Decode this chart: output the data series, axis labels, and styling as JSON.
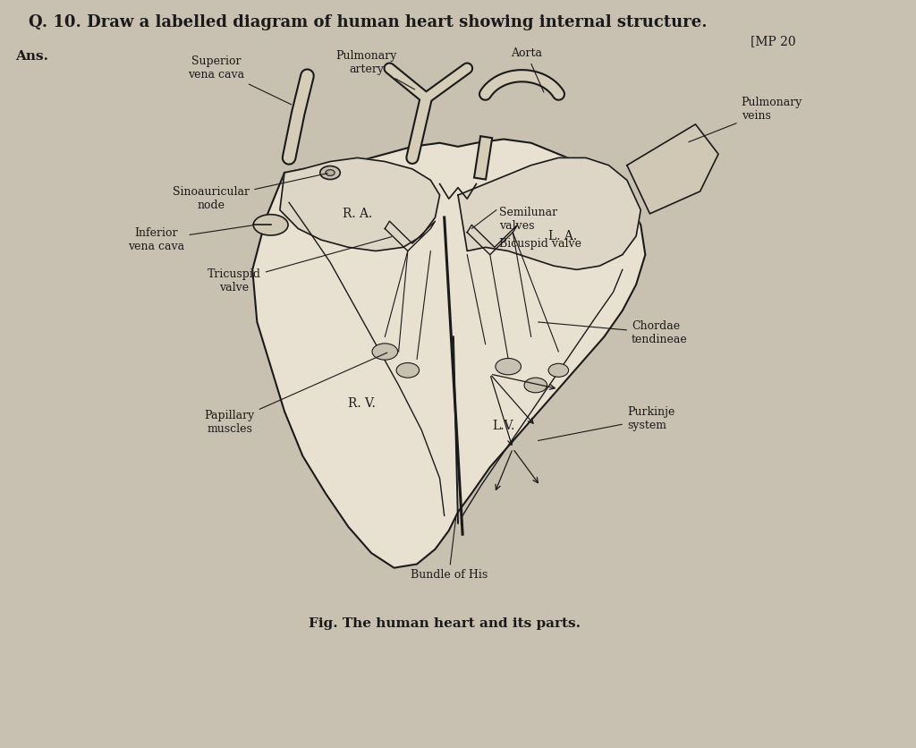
{
  "bg_color": "#c8c0b0",
  "title": "Q. 10. Draw a labelled diagram of human heart showing internal structure.",
  "subtitle": "[MP 20",
  "ans_label": "Ans.",
  "fig_caption": "Fig. The human heart and its parts.",
  "title_fontsize": 13,
  "label_fontsize": 9,
  "labels": {
    "pulmonary_artery": "Pulmonary\nartery",
    "superior_vena_cava": "Superior\nvena cava",
    "aorta": "Aorta",
    "pulmonary_veins": "Pulmonary\nveins",
    "sinoauricular_node": "Sinoauricular\nnode",
    "semilunar_valves": "Semilunar\nvalves",
    "LA": "L. A.",
    "bicuspid_valve": "Bicuspid valve",
    "inferior_vena_cava": "Inferior\nvena cava",
    "RA": "R. A.",
    "tricuspid_valve": "Tricuspid\nvalve",
    "chordae_tendineae": "Chordae\ntendineae",
    "RV": "R. V.",
    "LV": "L.V.",
    "purkinje_system": "Purkinje\nsystem",
    "papillary_muscles": "Papillary\nmuscles",
    "bundle_of_his": "Bundle of His"
  }
}
